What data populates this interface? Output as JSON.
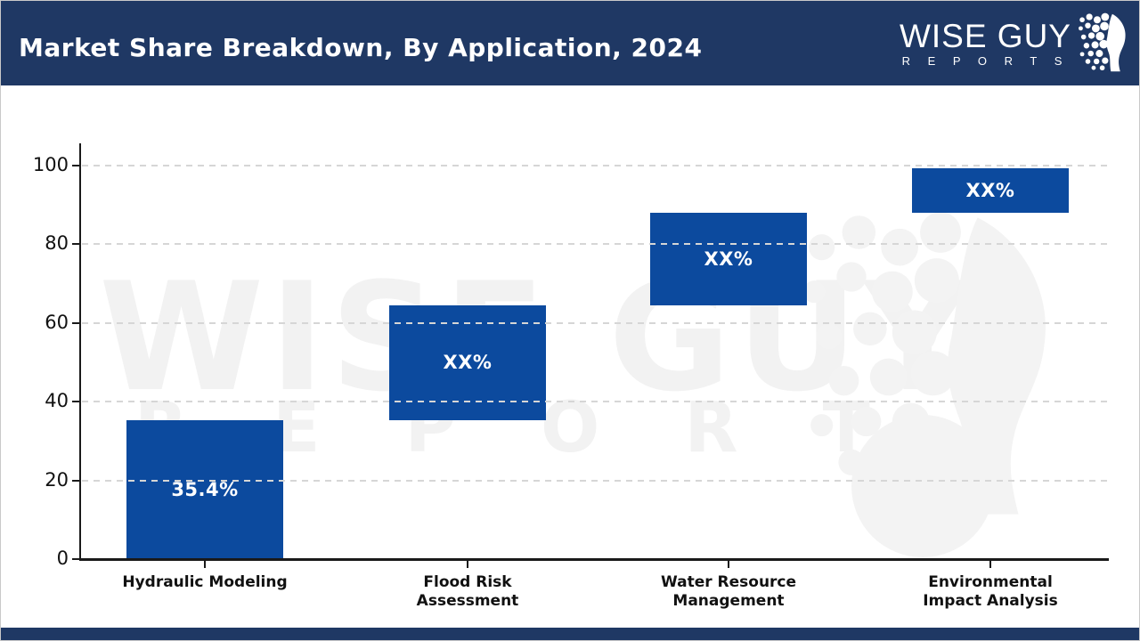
{
  "header": {
    "title": "Market Share Breakdown, By Application, 2024",
    "brand": {
      "name": "WISE GUY",
      "subtitle": "R E P O R T S"
    }
  },
  "watermark": {
    "line1": "WISE GUY",
    "line2": "R E P O R T S"
  },
  "footer": {
    "text": ""
  },
  "chart_data": {
    "type": "bar",
    "subtype": "floating-segment-waterfall",
    "title": "Market Share Breakdown, By Application, 2024",
    "categories": [
      "Hydraulic Modeling",
      "Flood Risk Assessment",
      "Water Resource Management",
      "Environmental Impact Analysis"
    ],
    "category_tick_lines": [
      [
        "Hydraulic Modeling"
      ],
      [
        "Flood Risk",
        "Assessment"
      ],
      [
        "Water Resource",
        "Management"
      ],
      [
        "Environmental",
        "Impact Analysis"
      ]
    ],
    "segments": [
      {
        "category": "Hydraulic Modeling",
        "start": 0,
        "end": 35.4,
        "label": "35.4%"
      },
      {
        "category": "Flood Risk Assessment",
        "start": 35.4,
        "end": 64.5,
        "label": "XX%"
      },
      {
        "category": "Water Resource Management",
        "start": 64.5,
        "end": 88.0,
        "label": "XX%"
      },
      {
        "category": "Environmental Impact Analysis",
        "start": 88.0,
        "end": 99.3,
        "label": "XX%"
      }
    ],
    "yticks": [
      0,
      20,
      40,
      60,
      80,
      100
    ],
    "ylim": [
      0,
      105
    ],
    "xlabel": "",
    "ylabel": "",
    "grid": "horizontal dashed, drawn over bars",
    "legend": "none"
  },
  "colors": {
    "header_bg": "#1f3864",
    "footer_bg": "#1f3864",
    "bar": "#0c4a9e",
    "bar_label": "#ffffff",
    "grid_line": "#d6d6d6",
    "axis_line": "#1a1a1a",
    "tick_label": "#111111",
    "watermark": "#f2f2f2",
    "canvas_border": "#c9c9c9"
  }
}
